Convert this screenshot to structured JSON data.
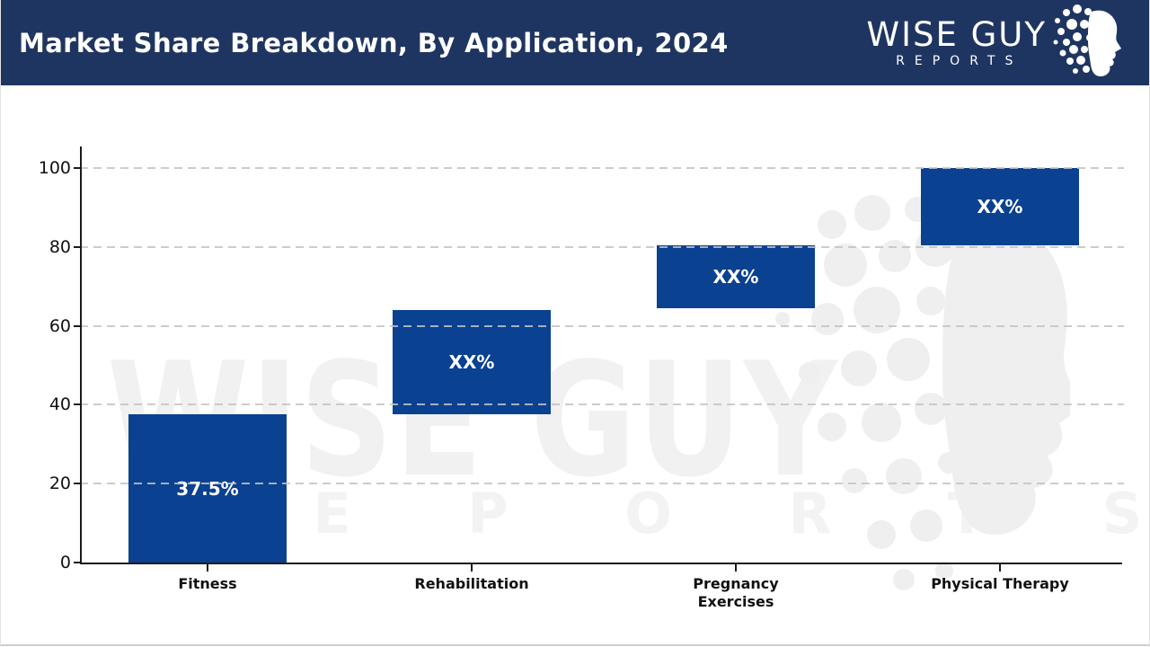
{
  "header": {
    "title": "Market Share Breakdown, By Application, 2024",
    "logo": {
      "line1": "WISE GUY",
      "line2": "REPORTS"
    }
  },
  "watermark": {
    "line1": "WISE GUY",
    "line2": "R E P O R T S"
  },
  "colors": {
    "header_bg": "#1f3561",
    "bar_blue": "#0a4191",
    "bar_label": "#ffffff",
    "axis_black": "#1a1a1a",
    "grid_gray": "#c3c3c3",
    "watermark_gray": "#f1f1f2",
    "bottom_edge_gray": "#cccccc"
  },
  "chart_data": {
    "type": "bar",
    "subtype": "waterfall",
    "title": "Market Share Breakdown, By Application, 2024",
    "xlabel": "",
    "ylabel": "",
    "categories": [
      "Fitness",
      "Rehabilitation",
      "Pregnancy Exercises",
      "Physical Therapy"
    ],
    "category_label_lines": [
      [
        "Fitness"
      ],
      [
        "Rehabilitation"
      ],
      [
        "Pregnancy",
        "Exercises"
      ],
      [
        "Physical Therapy"
      ]
    ],
    "segments": [
      {
        "category": "Fitness",
        "start": 0,
        "end": 37.5,
        "label": "37.5%"
      },
      {
        "category": "Rehabilitation",
        "start": 37.5,
        "end": 64,
        "label": "XX%"
      },
      {
        "category": "Pregnancy Exercises",
        "start": 64.5,
        "end": 80.5,
        "label": "XX%"
      },
      {
        "category": "Physical Therapy",
        "start": 80.5,
        "end": 100,
        "label": "XX%"
      }
    ],
    "yticks": [
      0,
      20,
      40,
      60,
      80,
      100
    ],
    "ylim": [
      0,
      105
    ],
    "grid": "horizontal dashed, drawn over bars",
    "legend": "none"
  }
}
